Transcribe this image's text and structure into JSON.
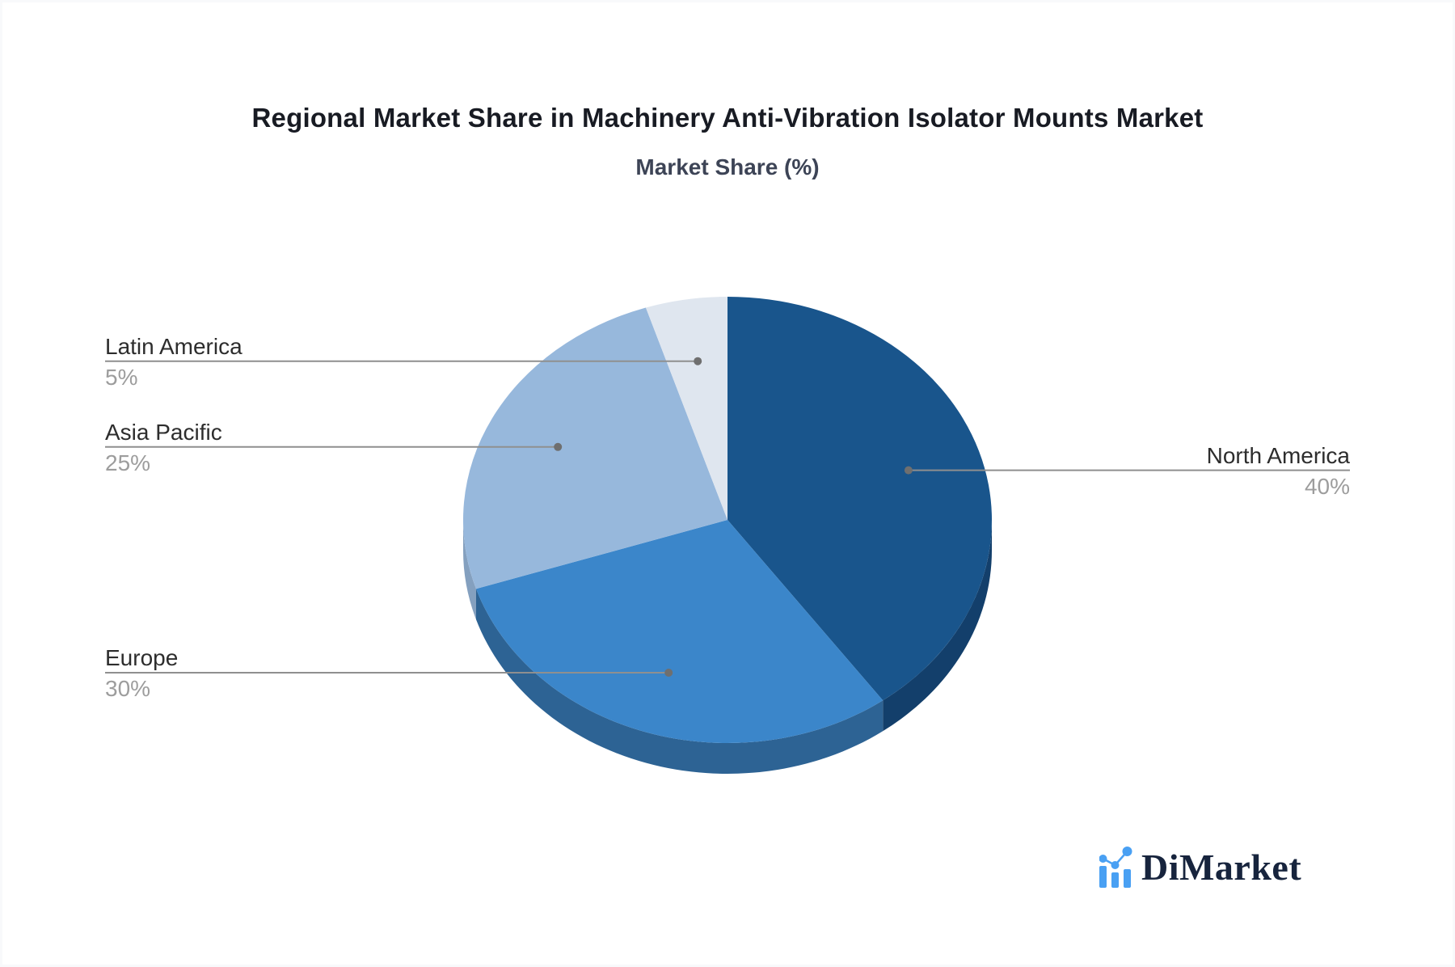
{
  "header": {
    "title": "Regional Market Share in Machinery Anti-Vibration Isolator Mounts Market",
    "subtitle": "Market Share (%)",
    "title_color": "#181b23",
    "subtitle_color": "#3d4456"
  },
  "chart_data": {
    "type": "pie",
    "title": "Regional Market Share in Machinery Anti-Vibration Isolator Mounts Market",
    "subtitle": "Market Share (%)",
    "effect": "3d",
    "direction": "clockwise",
    "start_angle": "12-o'clock",
    "labels_style": "callout-leader-lines",
    "legend_position": "none",
    "value_suffix": "%",
    "categories": [
      "North America",
      "Europe",
      "Asia Pacific",
      "Latin America"
    ],
    "values": [
      40,
      30,
      25,
      5
    ],
    "series": [
      {
        "label": "North America",
        "value": 40,
        "color": "#19558c",
        "side_color": "#133f6b"
      },
      {
        "label": "Europe",
        "value": 30,
        "color": "#3b86ca",
        "side_color": "#2d6394"
      },
      {
        "label": "Asia Pacific",
        "value": 25,
        "color": "#97b8dc",
        "side_color": "#84a0bf"
      },
      {
        "label": "Latin America",
        "value": 5,
        "color": "#dfe6ef",
        "side_color": "#c9d3e0"
      }
    ],
    "leader_line_color": "#8f8f8f",
    "leader_dot_color": "#6f6f6f",
    "label_color": "#2d2d2d",
    "value_color": "#9d9d9d"
  },
  "branding": {
    "logo_text": "DiMarket",
    "logo_text_color": "#17243d",
    "logo_icon": "bar-chart-logo-icon",
    "logo_icon_color": "#49a0f3"
  }
}
